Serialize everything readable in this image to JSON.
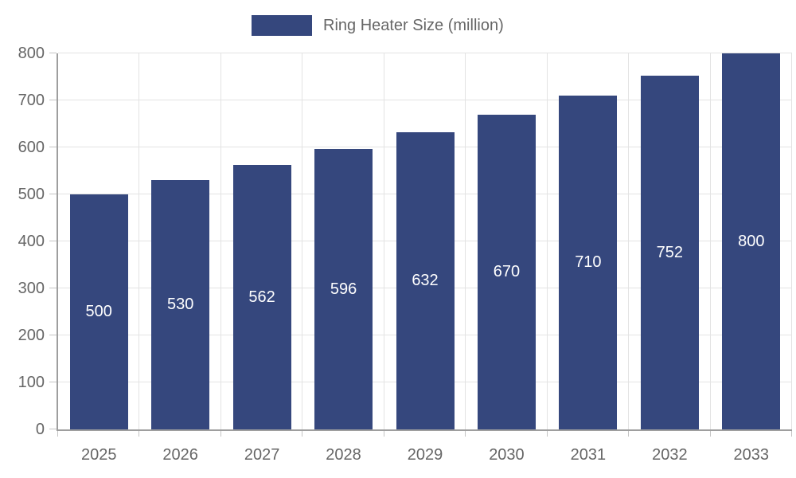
{
  "chart_data": {
    "type": "bar",
    "title": "Ring Heater Size (million)",
    "legend": {
      "label": "Ring Heater Size (million)",
      "position": "top",
      "swatch_color": "#35477d"
    },
    "categories": [
      "2025",
      "2026",
      "2027",
      "2028",
      "2029",
      "2030",
      "2031",
      "2032",
      "2033"
    ],
    "series": [
      {
        "name": "Ring Heater Size (million)",
        "values": [
          500,
          530,
          562,
          596,
          632,
          670,
          710,
          752,
          800
        ]
      }
    ],
    "value_labels": [
      "500",
      "530",
      "562",
      "596",
      "632",
      "670",
      "710",
      "752",
      "800"
    ],
    "xlabel": "",
    "ylabel": "",
    "ylim": [
      0,
      800
    ],
    "yticks": [
      0,
      100,
      200,
      300,
      400,
      500,
      600,
      700,
      800
    ],
    "grid": true,
    "colors": {
      "bar": "#35477d",
      "value_label": "#ffffff",
      "axis_text": "#666666",
      "gridline": "#e3e3e3",
      "axis_line": "#9e9e9e",
      "tick": "#c4c4c4"
    }
  }
}
